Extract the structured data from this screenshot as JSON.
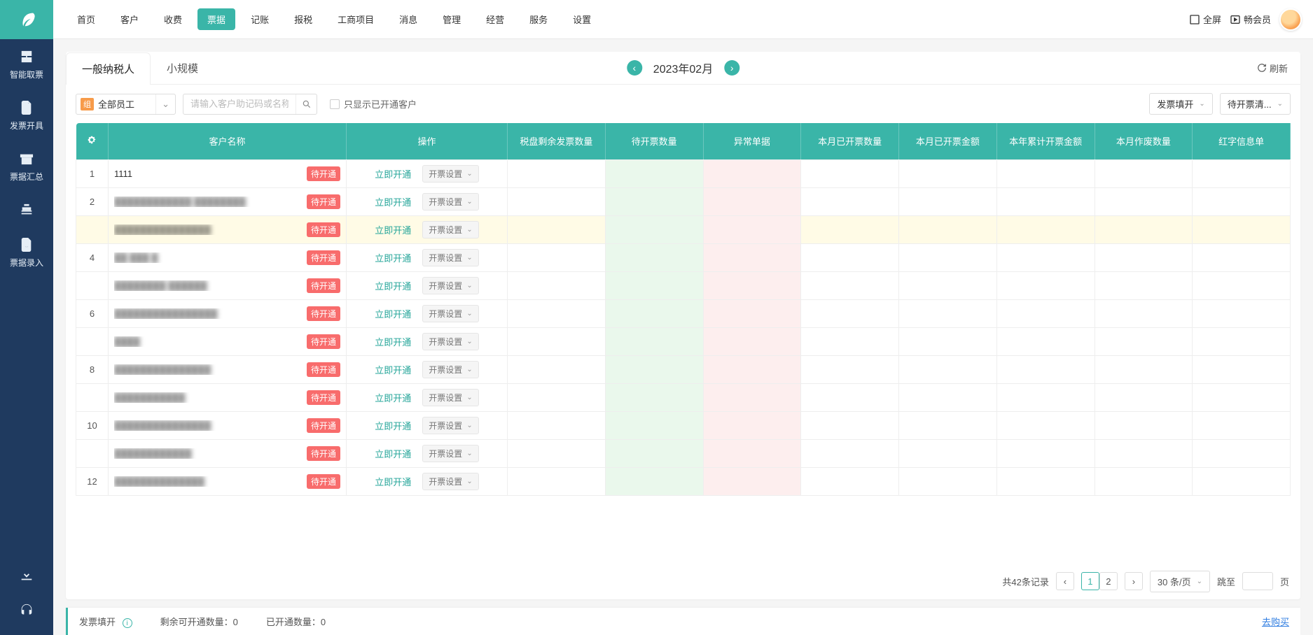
{
  "colors": {
    "brand": "#3ab5a8",
    "sidebar": "#1f3a5f",
    "badge": "#f86c6c",
    "empBadge": "#f79b4a",
    "rowHighlight": "#fffbe6",
    "colGreen": "#eaf8ec",
    "colRed": "#fdeeee"
  },
  "topnav": {
    "items": [
      "首页",
      "客户",
      "收费",
      "票据",
      "记账",
      "报税",
      "工商项目",
      "消息",
      "管理",
      "经营",
      "服务",
      "设置"
    ],
    "activeIndex": 3,
    "fullscreen": "全屏",
    "member": "畅会员"
  },
  "sidebar": {
    "items": [
      {
        "label": "智能取票"
      },
      {
        "label": "发票开具"
      },
      {
        "label": "票据汇总"
      },
      {
        "label": ""
      },
      {
        "label": "票据录入"
      }
    ]
  },
  "tabs": {
    "items": [
      "一般纳税人",
      "小规模"
    ],
    "activeIndex": 0
  },
  "dateNav": {
    "text": "2023年02月"
  },
  "refreshLabel": "刷新",
  "filter": {
    "empBadge": "组",
    "empText": "全部员工",
    "searchPlaceholder": "请输入客户助记码或名称",
    "checkboxLabel": "只显示已开通客户",
    "dd1": "发票填开",
    "dd2": "待开票清..."
  },
  "table": {
    "headers": [
      "",
      "客户名称",
      "操作",
      "税盘剩余发票数量",
      "待开票数量",
      "异常单据",
      "本月已开票数量",
      "本月已开票金额",
      "本年累计开票金额",
      "本月作废数量",
      "红字信息单"
    ],
    "opLink": "立即开通",
    "opDropdown": "开票设置",
    "badge": "待开通",
    "rows": [
      {
        "idx": "1",
        "name": "1111",
        "blur": false
      },
      {
        "idx": "2",
        "name": "████████████ ████████",
        "blur": true
      },
      {
        "idx": "",
        "name": "███████████████",
        "blur": true
      },
      {
        "idx": "4",
        "name": "██ ███ █",
        "blur": true
      },
      {
        "idx": "",
        "name": "████████ ██████",
        "blur": true
      },
      {
        "idx": "6",
        "name": "████████████████",
        "blur": true
      },
      {
        "idx": "",
        "name": "████",
        "blur": true
      },
      {
        "idx": "8",
        "name": "███████████████",
        "blur": true
      },
      {
        "idx": "",
        "name": "███████████",
        "blur": true
      },
      {
        "idx": "10",
        "name": "███████████████",
        "blur": true
      },
      {
        "idx": "",
        "name": "████████████",
        "blur": true
      },
      {
        "idx": "12",
        "name": "██████████████",
        "blur": true
      }
    ]
  },
  "pager": {
    "total": "共42条记录",
    "pages": [
      "1",
      "2"
    ],
    "activePage": 0,
    "perPage": "30 条/页",
    "jumpLabel": "跳至",
    "pageSuffix": "页"
  },
  "footer": {
    "title": "发票填开",
    "remain": "剩余可开通数量：0",
    "opened": "已开通数量：0",
    "buy": "去购买"
  }
}
